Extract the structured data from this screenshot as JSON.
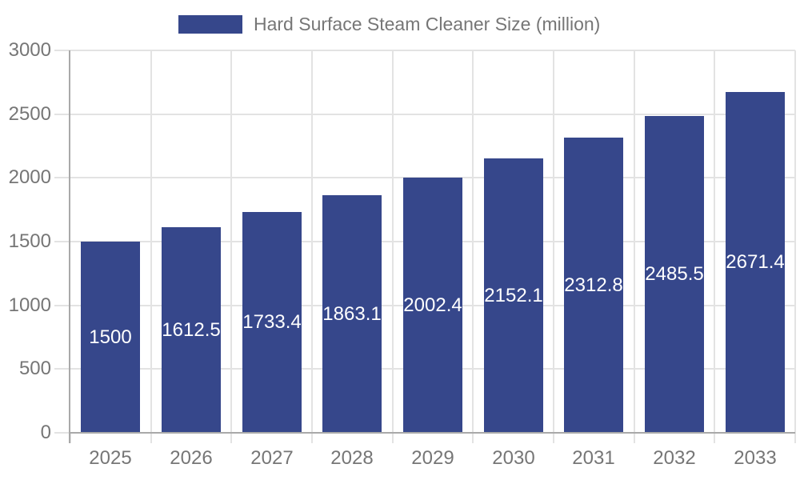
{
  "chart_data": {
    "type": "bar",
    "title": "Hard Surface Steam Cleaner Size (million)",
    "series_name": "Hard Surface Steam Cleaner Size (million)",
    "categories": [
      "2025",
      "2026",
      "2027",
      "2028",
      "2029",
      "2030",
      "2031",
      "2032",
      "2033"
    ],
    "values": [
      1500,
      1612.5,
      1733.4,
      1863.1,
      2002.4,
      2152.1,
      2312.8,
      2485.5,
      2671.4
    ],
    "data_labels": [
      "1500",
      "1612.5",
      "1733.4",
      "1863.1",
      "2002.4",
      "2152.1",
      "2312.8",
      "2485.5",
      "2671.4"
    ],
    "xlabel": "",
    "ylabel": "",
    "ylim": [
      0,
      3000
    ],
    "y_ticks": [
      0,
      500,
      1000,
      1500,
      2000,
      2500,
      3000
    ],
    "grid": true,
    "legend_position": "top",
    "colors": {
      "bar": "#36478b",
      "bar_label_text": "#ffffff",
      "axis_text": "#767676",
      "grid_line": "#e3e3e3",
      "axis_line": "#a9a9a9",
      "background": "#ffffff"
    }
  }
}
